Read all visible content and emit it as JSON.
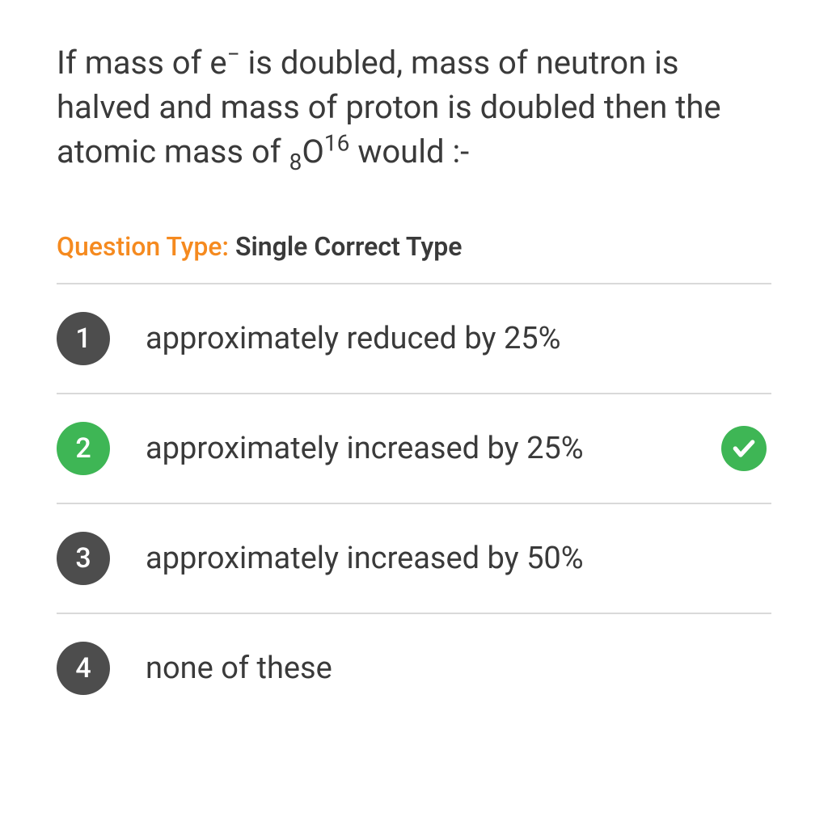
{
  "colors": {
    "text": "#3a3a3a",
    "accent_orange": "#f58a1f",
    "divider": "#d9d9d9",
    "badge_default": "#4d4d4d",
    "badge_correct": "#3eb655",
    "check_bg": "#3eb655",
    "check_fg": "#ffffff",
    "background": "#ffffff"
  },
  "typography": {
    "question_fontsize": 40,
    "option_fontsize": 38,
    "qtype_fontsize": 32,
    "badge_fontsize": 34
  },
  "question": {
    "html": "If mass of e<sup>&minus;</sup> is doubled, mass of neutron is halved and mass of proton is doubled then the atomic mass of <sub>8</sub>O<sup>16</sup> would :-"
  },
  "question_type": {
    "label": "Question Type:",
    "value": "Single Correct Type"
  },
  "options": [
    {
      "num": "1",
      "text": "approximately reduced by 25%",
      "correct": false
    },
    {
      "num": "2",
      "text": "approximately increased by 25%",
      "correct": true
    },
    {
      "num": "3",
      "text": "approximately increased by 50%",
      "correct": false
    },
    {
      "num": "4",
      "text": "none of these",
      "correct": false
    }
  ]
}
